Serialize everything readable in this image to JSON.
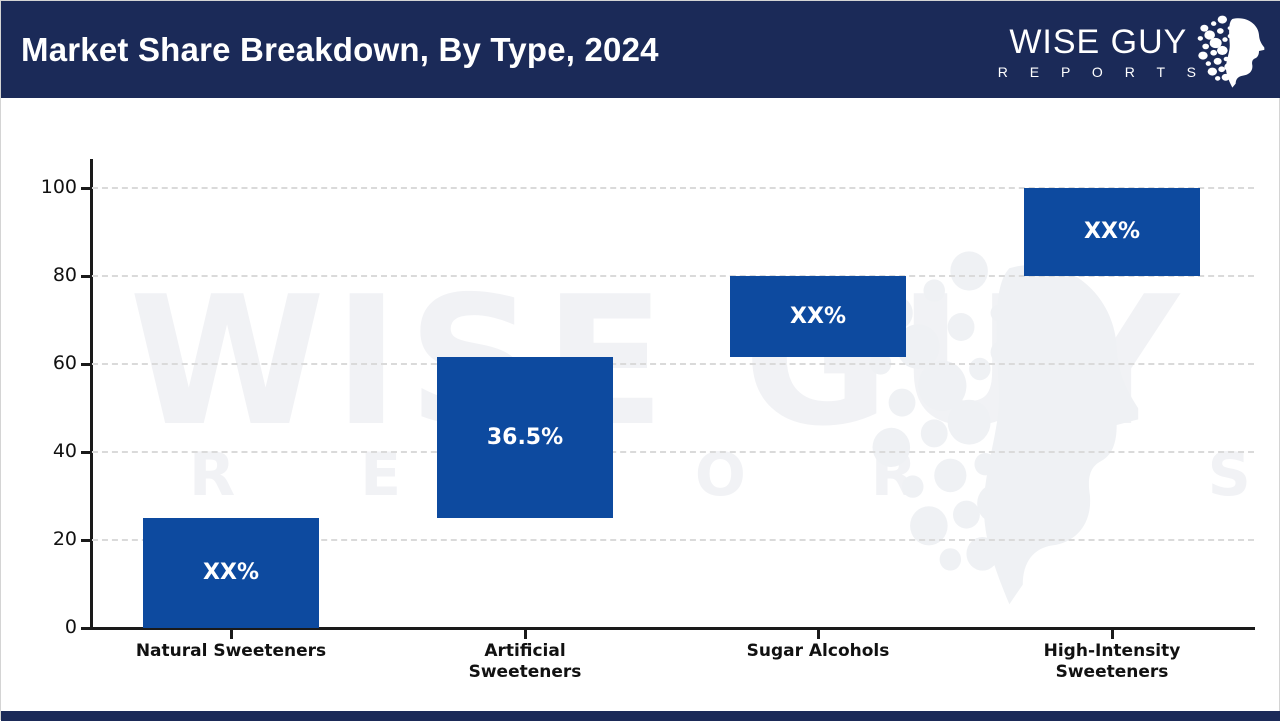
{
  "header": {
    "title": "Market Share Breakdown, By Type, 2024",
    "logo": {
      "line1": "WISE GUY",
      "line2": "R E P O R T S"
    }
  },
  "watermark": {
    "line1": "WISE GUY",
    "line2": "R E P O R T S"
  },
  "colors": {
    "header_bg": "#1b2a58",
    "footer_bg": "#1b2a58",
    "bar_blue": "#0d4a9f",
    "grid_gray": "#dadada",
    "axis_black": "#1a1a1a",
    "watermark_gray": "#f1f2f5"
  },
  "chart_data": {
    "type": "bar",
    "subtype": "floating-waterfall",
    "title": "Market Share Breakdown, By Type, 2024",
    "categories": [
      "Natural Sweeteners",
      "Artificial Sweeteners",
      "Sugar Alcohols",
      "High-Intensity Sweeteners"
    ],
    "categories_display": [
      [
        "Natural Sweeteners"
      ],
      [
        "Artificial",
        "Sweeteners"
      ],
      [
        "Sugar Alcohols"
      ],
      [
        "High-Intensity",
        "Sweeteners"
      ]
    ],
    "bars": [
      {
        "category": "Natural Sweeteners",
        "label": "XX%",
        "start": 0,
        "end": 25
      },
      {
        "category": "Artificial Sweeteners",
        "label": "36.5%",
        "start": 25,
        "end": 61.5
      },
      {
        "category": "Sugar Alcohols",
        "label": "XX%",
        "start": 61.5,
        "end": 80
      },
      {
        "category": "High-Intensity Sweeteners",
        "label": "XX%",
        "start": 80,
        "end": 100
      }
    ],
    "xlabel": "",
    "ylabel": "",
    "ylim": [
      0,
      100
    ],
    "yticks": [
      0,
      20,
      40,
      60,
      80,
      100
    ],
    "grid": "horizontal-dashed",
    "legend": false
  }
}
